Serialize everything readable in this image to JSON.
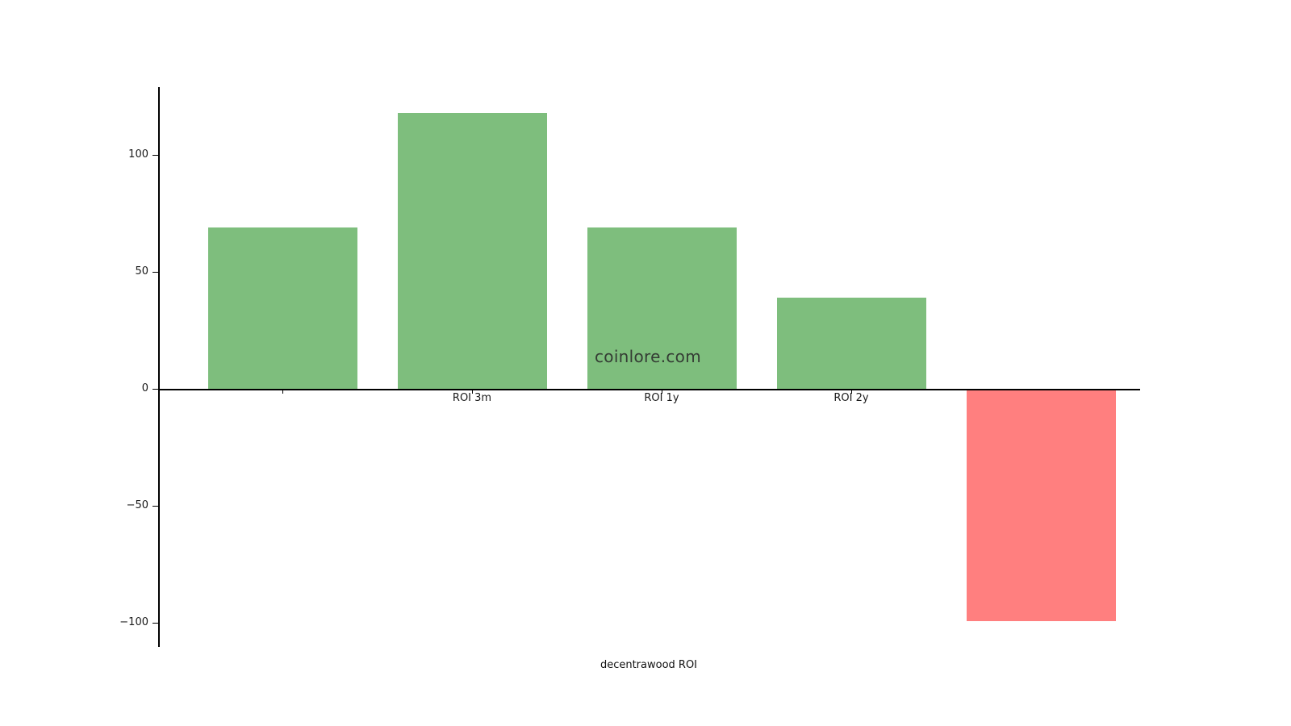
{
  "watermark": "coinlore.com",
  "chart_data": {
    "type": "bar",
    "title": "",
    "xlabel": "decentrawood ROI",
    "ylabel": "",
    "categories": [
      "",
      "ROI 3m",
      "ROI 1y",
      "ROI 2y",
      ""
    ],
    "values": [
      69,
      118,
      69,
      39,
      -99
    ],
    "bar_colors": [
      "#7ebe7d",
      "#7ebe7d",
      "#7ebe7d",
      "#7ebe7d",
      "#ff7f7f"
    ],
    "xtick_visible": [
      true,
      true,
      true,
      true,
      false
    ],
    "yticks": [
      100,
      50,
      0,
      -50,
      -100
    ],
    "ylim": [
      -110,
      129
    ],
    "grid": "off",
    "legend": "none",
    "watermark": "coinlore.com",
    "colors": {
      "positive": "#7ebe7d",
      "negative": "#ff7f7f",
      "axis": "#000000",
      "tick_label": "#1a1a1a",
      "watermark": "#2a2a2a"
    }
  }
}
